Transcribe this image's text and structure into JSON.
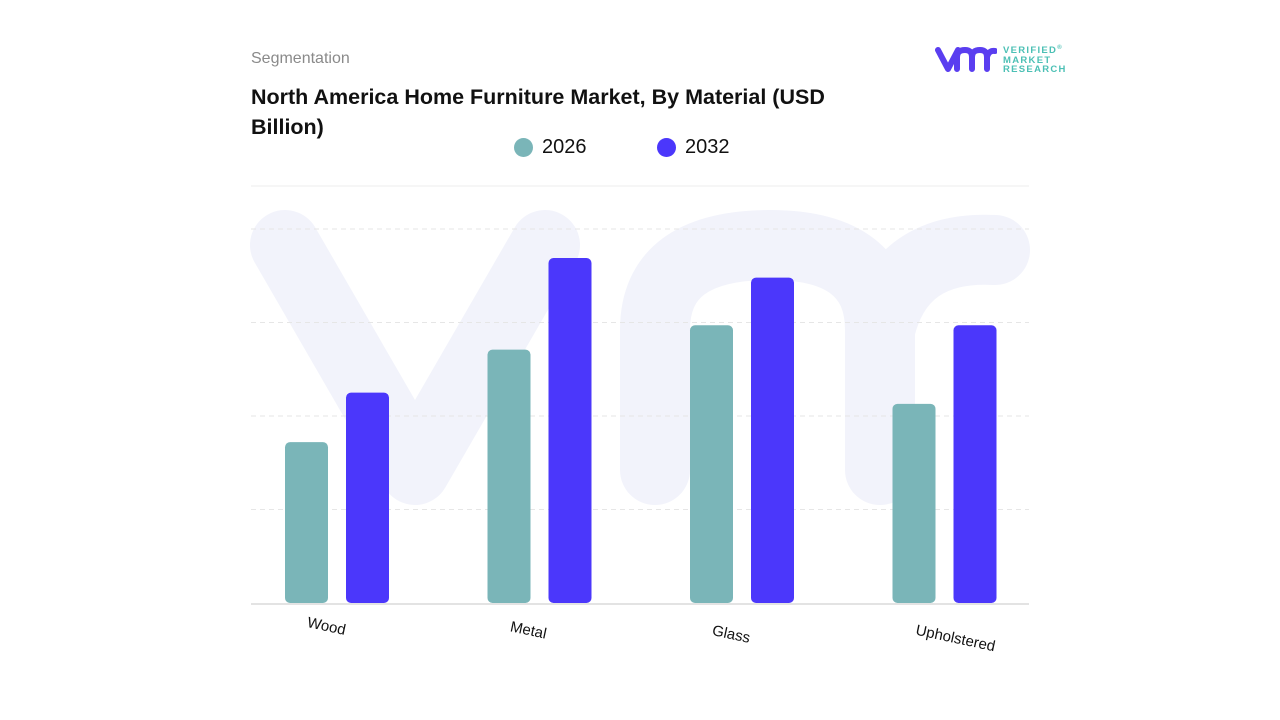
{
  "header": {
    "segment_label": "Segmentation",
    "title": "North America Home Furniture Market, By Material (USD Billion)"
  },
  "logo": {
    "line1": "VERIFIED",
    "line2": "MARKET",
    "line3": "RESEARCH",
    "registered": "®"
  },
  "chart_data": {
    "type": "bar",
    "title": "North America Home Furniture Market, By Material (USD Billion)",
    "categories": [
      "Wood",
      "Metal",
      "Glass",
      "Upholstered"
    ],
    "series": [
      {
        "name": "2026",
        "color": "#7ab5b8",
        "values": [
          1.72,
          2.71,
          2.97,
          2.13
        ]
      },
      {
        "name": "2032",
        "color": "#4b37fb",
        "values": [
          2.25,
          3.69,
          3.48,
          2.97
        ]
      }
    ],
    "ylim": [
      0,
      4
    ],
    "y_tick_labels_shown": false,
    "grid": true,
    "legend_position": "top"
  }
}
